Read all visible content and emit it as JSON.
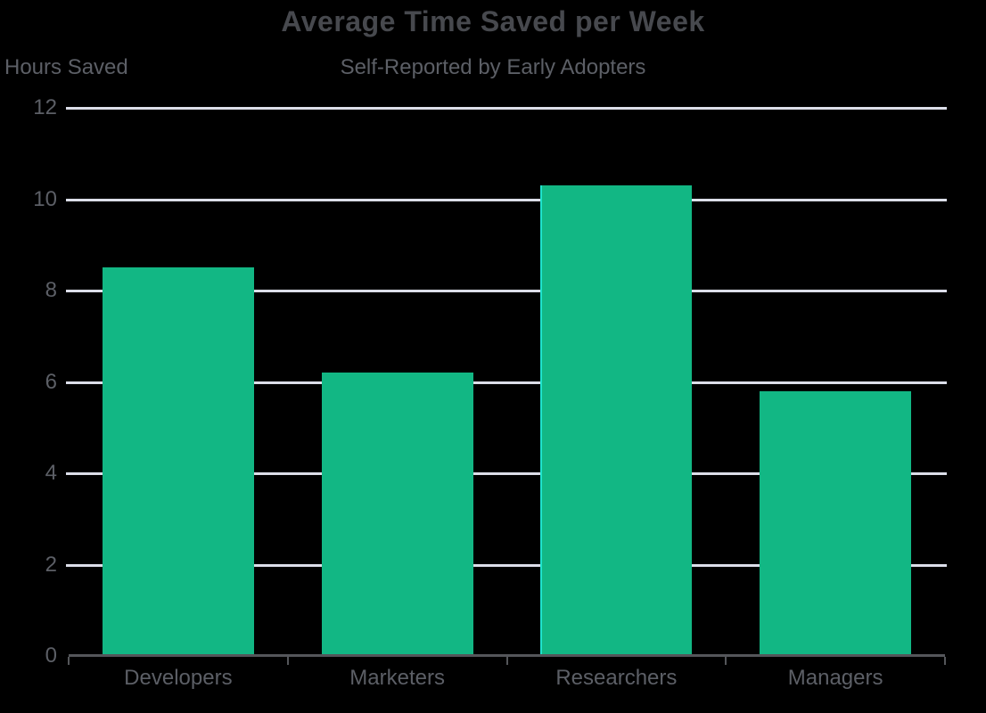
{
  "page": {
    "background": "#000000"
  },
  "chart_data": {
    "type": "bar",
    "title": "Average Time Saved per Week",
    "subtitle": "Self-Reported by Early Adopters",
    "ylabel": "Hours Saved",
    "xlabel": "",
    "categories": [
      "Developers",
      "Marketers",
      "Researchers",
      "Managers"
    ],
    "values": [
      8.5,
      6.2,
      10.3,
      5.8
    ],
    "ylim": [
      0,
      12
    ],
    "yticks": [
      0,
      2,
      4,
      6,
      8,
      10,
      12
    ],
    "grid": "horizontal",
    "legend": "none",
    "highlight_edge_category": "Researchers",
    "colors": {
      "bar": "#12b784",
      "bar_edge_highlight": "#1fe2cc",
      "gridline": "#dcdee9",
      "axis": "#54565a",
      "title_text": "#47494e",
      "label_text": "#5c5f66"
    }
  }
}
